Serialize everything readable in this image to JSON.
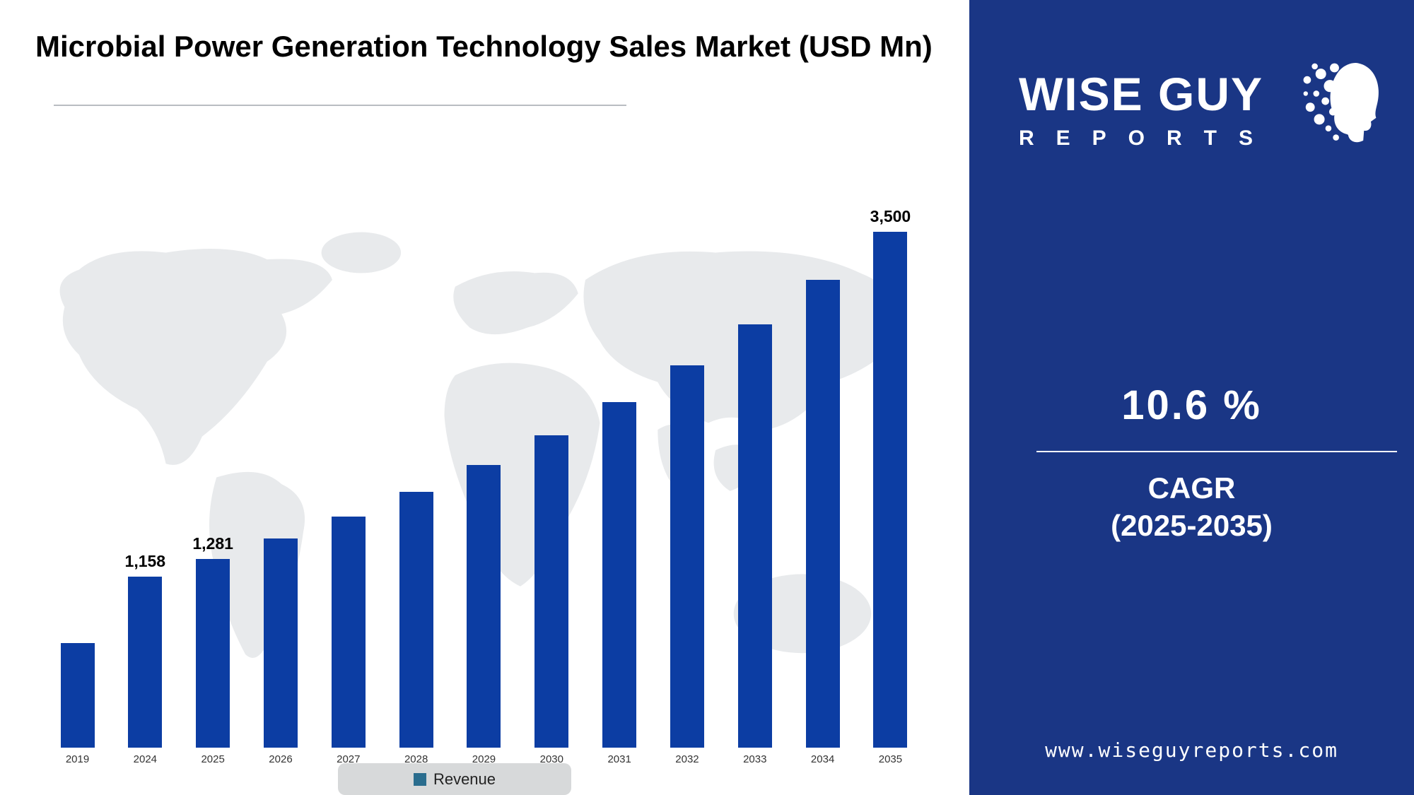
{
  "title": "Microbial Power Generation Technology Sales Market (USD Mn)",
  "chart_data": {
    "type": "bar",
    "title": "Microbial Power Generation Technology Sales Market (USD Mn)",
    "categories": [
      "2019",
      "2024",
      "2025",
      "2026",
      "2027",
      "2028",
      "2029",
      "2030",
      "2031",
      "2032",
      "2033",
      "2034",
      "2035"
    ],
    "values": [
      710,
      1158,
      1281,
      1417,
      1567,
      1733,
      1917,
      2120,
      2345,
      2594,
      2869,
      3173,
      3500
    ],
    "labels": [
      "",
      "1,158",
      "1,281",
      "",
      "",
      "",
      "",
      "",
      "",
      "",
      "",
      "",
      "3,500"
    ],
    "xlabel": "",
    "ylabel": "",
    "ylim": [
      0,
      3800
    ],
    "grid": false,
    "legend_position": "bottom",
    "bar_color": "#0c3da3"
  },
  "legend": {
    "label": "Revenue",
    "swatch_color": "#2a6d8e"
  },
  "sidebar": {
    "logo_line1": "WISE GUY",
    "logo_line2": "REPORTS",
    "cagr_value": "10.6 %",
    "cagr_label": "CAGR",
    "cagr_range": "(2025-2035)",
    "website": "www.wiseguyreports.com",
    "background_color": "#1a3685"
  }
}
